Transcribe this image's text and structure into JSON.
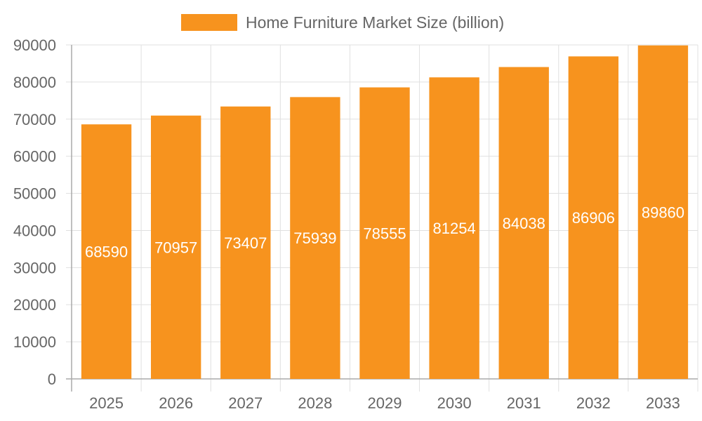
{
  "chart_data": {
    "type": "bar",
    "categories": [
      "2025",
      "2026",
      "2027",
      "2028",
      "2029",
      "2030",
      "2031",
      "2032",
      "2033"
    ],
    "series": [
      {
        "name": "Home Furniture Market Size (billion)",
        "values": [
          68590,
          70957,
          73407,
          75939,
          78555,
          81254,
          84038,
          86906,
          89860
        ]
      }
    ],
    "ylim": [
      0,
      90000
    ],
    "yticks": [
      "0",
      "10000",
      "20000",
      "30000",
      "40000",
      "50000",
      "60000",
      "70000",
      "80000",
      "90000"
    ],
    "grid": true,
    "legend_position": "top-center",
    "data_labels": true,
    "colors": {
      "bar": "#F7931E",
      "grid": "#e0e0e0",
      "axis": "#aaaaaa",
      "tick_text": "#666666",
      "label_text": "#ffffff"
    }
  }
}
